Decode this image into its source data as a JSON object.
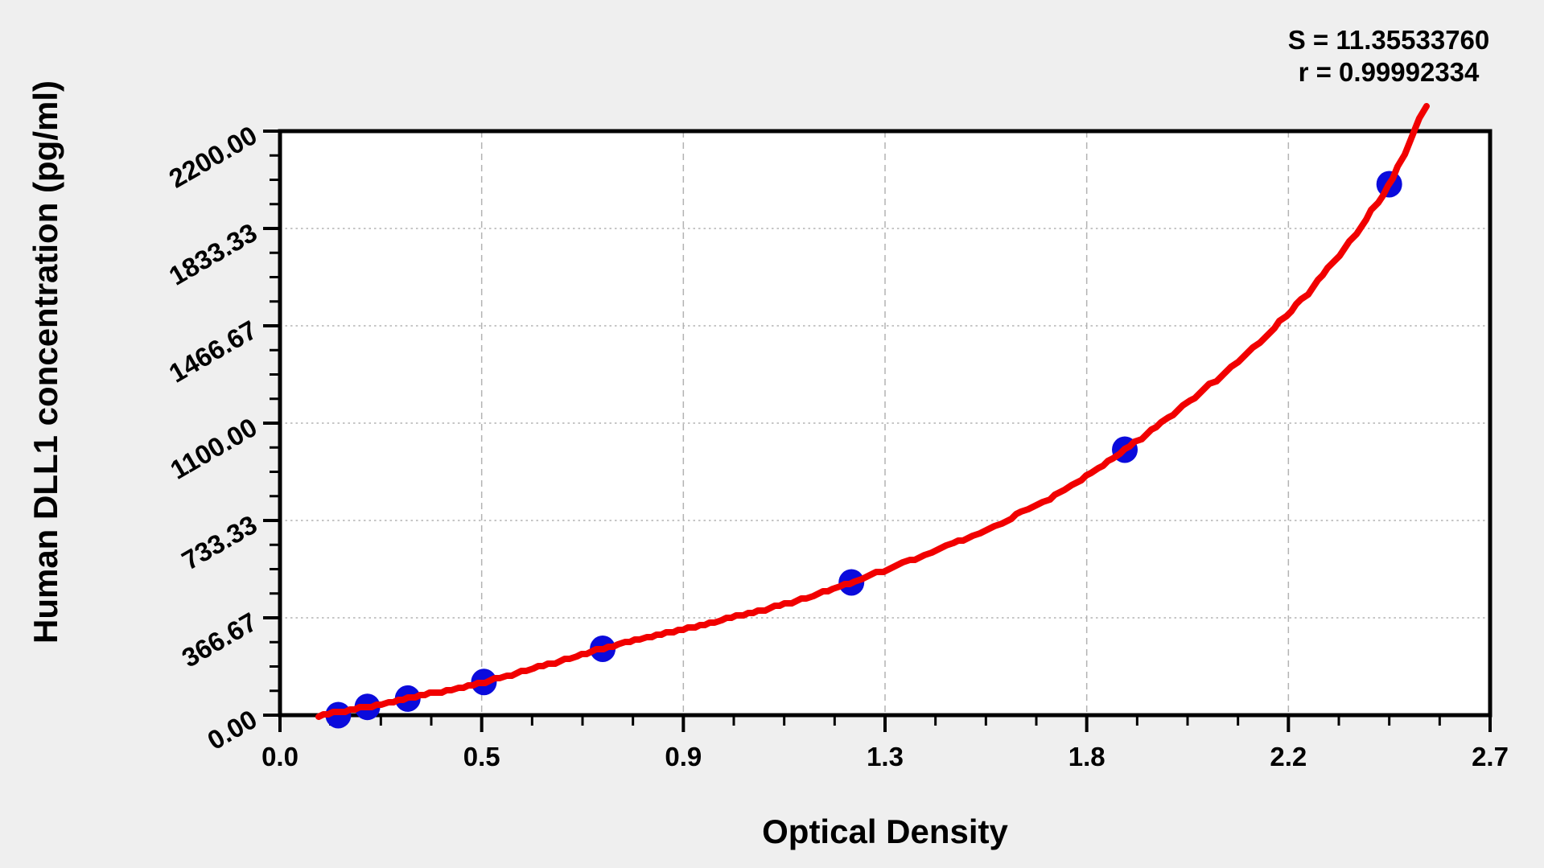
{
  "figure": {
    "s_label": "S = 11.35533760",
    "r_label": "r = 0.99992334",
    "xlabel": "Optical Density",
    "ylabel": "Human DLL1 concentration (pg/ml)"
  },
  "chart_data": {
    "type": "scatter",
    "title": "",
    "xlabel": "Optical Density",
    "ylabel": "Human DLL1 concentration (pg/ml)",
    "xlim": [
      0,
      2.7
    ],
    "ylim": [
      0,
      2200
    ],
    "x_tick_values": [
      0,
      0.45,
      0.9,
      1.35,
      1.8,
      2.25,
      2.7
    ],
    "x_tick_labels": [
      "0.0",
      "0.5",
      "0.9",
      "1.3",
      "1.8",
      "2.2",
      "2.7"
    ],
    "y_tick_values": [
      0,
      366.67,
      733.33,
      1100,
      1466.67,
      1833.33,
      2200
    ],
    "y_tick_labels": [
      "0.00",
      "366.67",
      "733.33",
      "1100.00",
      "1466.67",
      "1833.33",
      "2200.00"
    ],
    "minor_ticks_per_interval": 3,
    "grid": "dashed-at-major-ticks",
    "legend": "none",
    "points": [
      {
        "od": 0.13,
        "concentration": 0
      },
      {
        "od": 0.195,
        "concentration": 31.25
      },
      {
        "od": 0.285,
        "concentration": 62.5
      },
      {
        "od": 0.455,
        "concentration": 125
      },
      {
        "od": 0.72,
        "concentration": 250
      },
      {
        "od": 1.275,
        "concentration": 500
      },
      {
        "od": 1.885,
        "concentration": 1000
      },
      {
        "od": 2.475,
        "concentration": 2000
      }
    ],
    "fit_curve": {
      "S": "11.35533760",
      "r": "0.99992334",
      "start": {
        "od": 0.084,
        "concentration": -3
      },
      "end": {
        "od": 2.558,
        "concentration": 2300
      }
    },
    "colors": {
      "curve": "#f10000",
      "points": "#0b0bdc",
      "grid": "#b3b3b3",
      "axis": "#000000",
      "text": "#000000",
      "background": "#efefef",
      "plot_background": "#ffffff"
    }
  }
}
